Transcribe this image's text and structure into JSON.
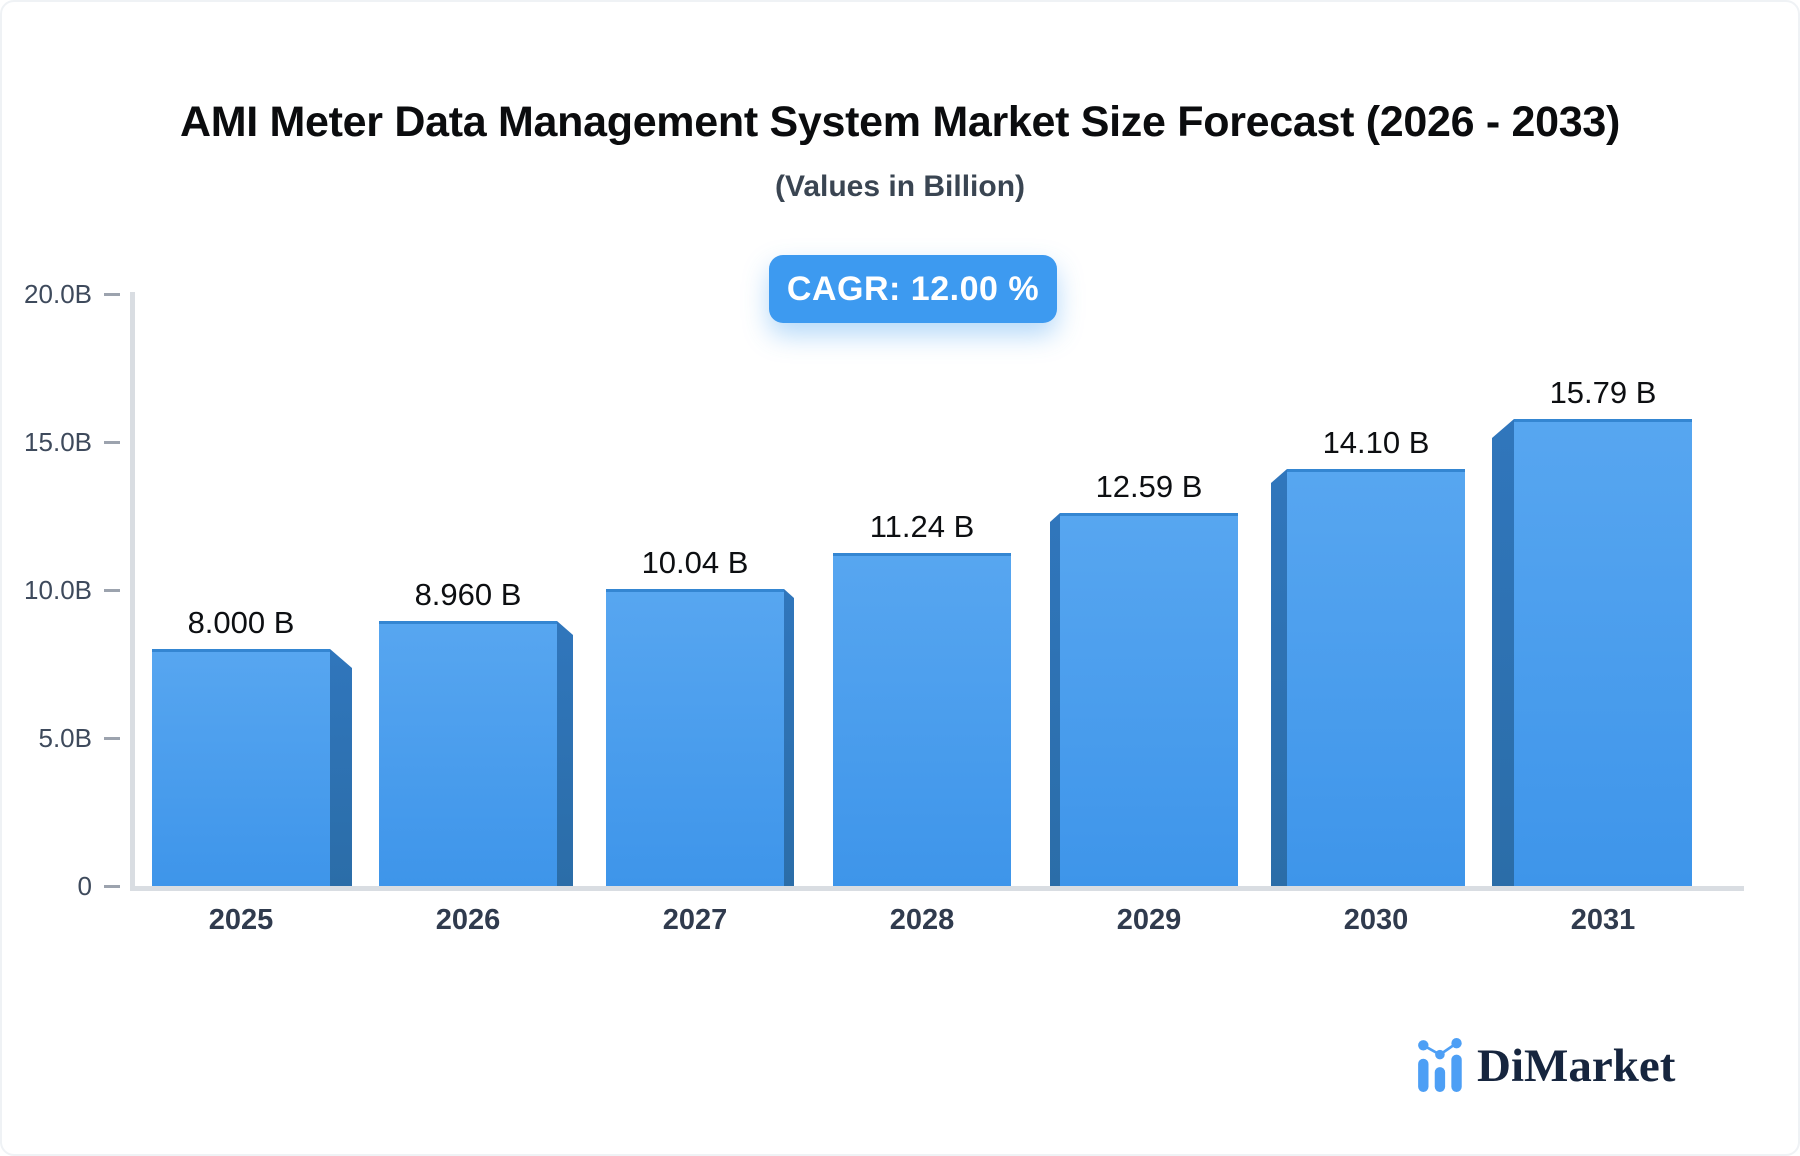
{
  "header": {
    "title": "AMI Meter Data Management System Market Size Forecast (2026 - 2033)",
    "subtitle": "(Values in Billion)",
    "cagr_label": "CAGR: 12.00 %"
  },
  "chart_data": {
    "type": "bar",
    "title": "AMI Meter Data Management System Market Size Forecast (2026 - 2033)",
    "subtitle": "(Values in Billion)",
    "annotation": "CAGR: 12.00 %",
    "categories": [
      "2025",
      "2026",
      "2027",
      "2028",
      "2029",
      "2030",
      "2031"
    ],
    "values": [
      8.0,
      8.96,
      10.04,
      11.24,
      12.59,
      14.1,
      15.79
    ],
    "bar_labels": [
      "8.000 B",
      "8.960 B",
      "10.04 B",
      "11.24 B",
      "12.59 B",
      "14.10 B",
      "15.79 B"
    ],
    "y_ticks": [
      {
        "label": "20.0B",
        "value": 20
      },
      {
        "label": "15.0B",
        "value": 15
      },
      {
        "label": "10.0B",
        "value": 10
      },
      {
        "label": "5.0B",
        "value": 5
      },
      {
        "label": "0",
        "value": 0
      }
    ],
    "ylim": [
      0,
      20
    ],
    "xlabel": "",
    "ylabel": "",
    "legend": null,
    "grid": false
  },
  "footer": {
    "brand": "DiMarket"
  },
  "colors": {
    "bar_face_top": "#57A6F0",
    "bar_face_bottom": "#3E95EA",
    "bar_edge": "#3486D2",
    "bar_side_top": "#3076BC",
    "bar_side_bottom": "#2B6DA8",
    "badge_bg": "#3D9AF0",
    "badge_text": "#FFFFFF",
    "axis_line": "#D9DDE2",
    "tick_dash": "#9CA3AE",
    "y_label": "#3E4A5C",
    "x_label": "#303B4E",
    "value_label": "#0D0F12",
    "title": "#0B0C0E",
    "subtitle": "#3A4552",
    "logo_blue": "#4D9FF5",
    "logo_text": "#16253E"
  }
}
